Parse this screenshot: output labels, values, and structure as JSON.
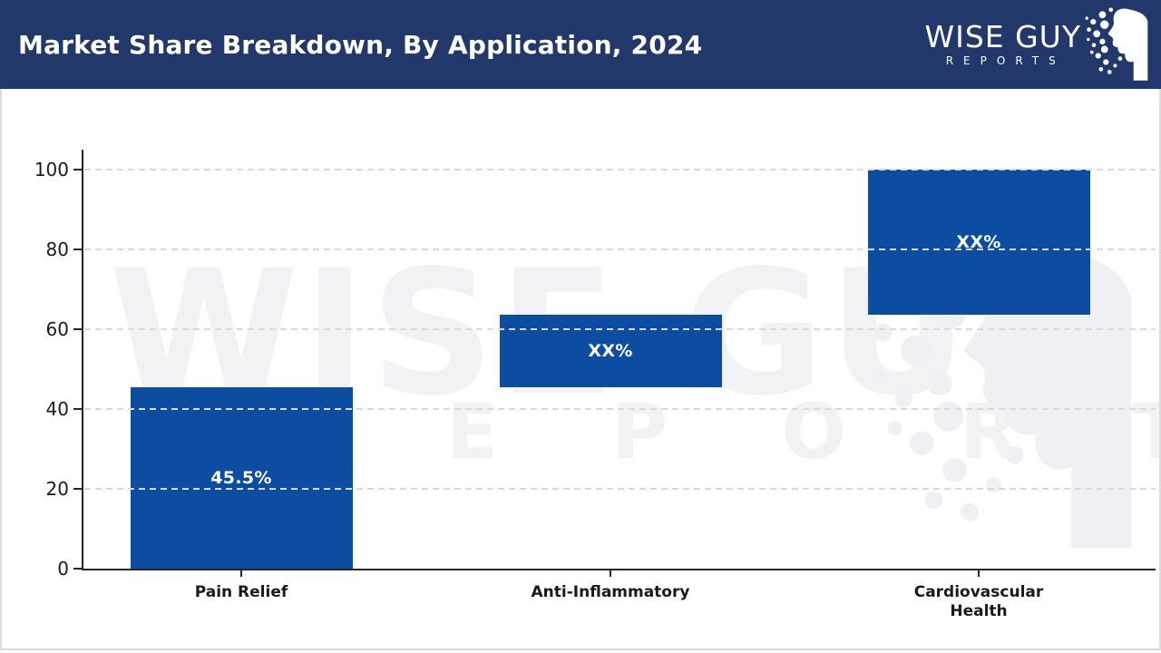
{
  "header": {
    "title": "Market Share Breakdown, By Application, 2024",
    "logo": {
      "wordmark": "WISE GUY",
      "subtext": "REPORTS"
    }
  },
  "watermark": {
    "wordmark": "WISE GUY",
    "subtext": "R E P O R T S"
  },
  "chart_data": {
    "type": "bar",
    "subtype": "waterfall",
    "title": "Market Share Breakdown, By Application, 2024",
    "categories": [
      "Pain Relief",
      "Anti-Inflammatory",
      "Cardiovascular\nHealth"
    ],
    "bars": [
      {
        "category": "Pain Relief",
        "start": 0,
        "end": 45.5,
        "value_label": "45.5%"
      },
      {
        "category": "Anti-Inflammatory",
        "start": 45.5,
        "end": 63.6,
        "value_label": "XX%"
      },
      {
        "category": "Cardiovascular Health",
        "start": 63.6,
        "end": 100,
        "value_label": "XX%"
      }
    ],
    "ylim": [
      0,
      100
    ],
    "yticks": [
      0,
      20,
      40,
      60,
      80,
      100
    ],
    "grid": {
      "horizontal": true,
      "style": "dashed"
    },
    "legend": "none",
    "colors": {
      "bar": "#0d4da1",
      "bar_label": "#ffffff",
      "axis": "#262626",
      "gridline": "#d9d9d9"
    }
  },
  "colors": {
    "header_bg": "#22386a",
    "header_text": "#ffffff",
    "card_border": "#dcdcdc",
    "watermark": "#f2f2f5"
  }
}
